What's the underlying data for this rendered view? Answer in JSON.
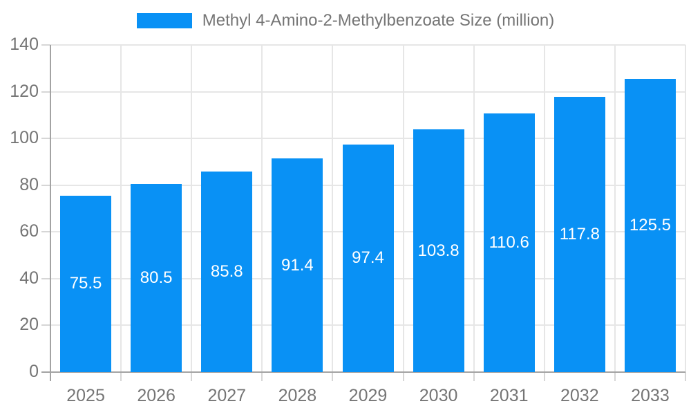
{
  "legend": {
    "label": "Methyl 4-Amino-2-Methylbenzoate Size (million)",
    "swatch_color": "#0991F5"
  },
  "chart_data": {
    "type": "bar",
    "title": "Methyl 4-Amino-2-Methylbenzoate Size (million)",
    "series_name": "Methyl 4-Amino-2-Methylbenzoate Size (million)",
    "categories": [
      "2025",
      "2026",
      "2027",
      "2028",
      "2029",
      "2030",
      "2031",
      "2032",
      "2033"
    ],
    "values": [
      75.5,
      80.5,
      85.8,
      91.4,
      97.4,
      103.8,
      110.6,
      117.8,
      125.5
    ],
    "value_labels": [
      "75.5",
      "80.5",
      "85.8",
      "91.4",
      "97.4",
      "103.8",
      "110.6",
      "117.8",
      "125.5"
    ],
    "xlabel": "",
    "ylabel": "",
    "ylim": [
      0,
      140
    ],
    "yticks": [
      0,
      20,
      40,
      60,
      80,
      100,
      120,
      140
    ],
    "grid": "horizontal and vertical light gridlines",
    "legend_position": "top-center",
    "value_label_position": "inside-middle",
    "colors": {
      "bar": "#0991F5",
      "bar_value_text": "#ffffff",
      "axis_line": "#a3a3a3",
      "grid_line": "#e6e6e6",
      "tick_line": "#d6d6d6",
      "axis_text": "#757575",
      "legend_text": "#757575",
      "background": "#ffffff"
    }
  }
}
